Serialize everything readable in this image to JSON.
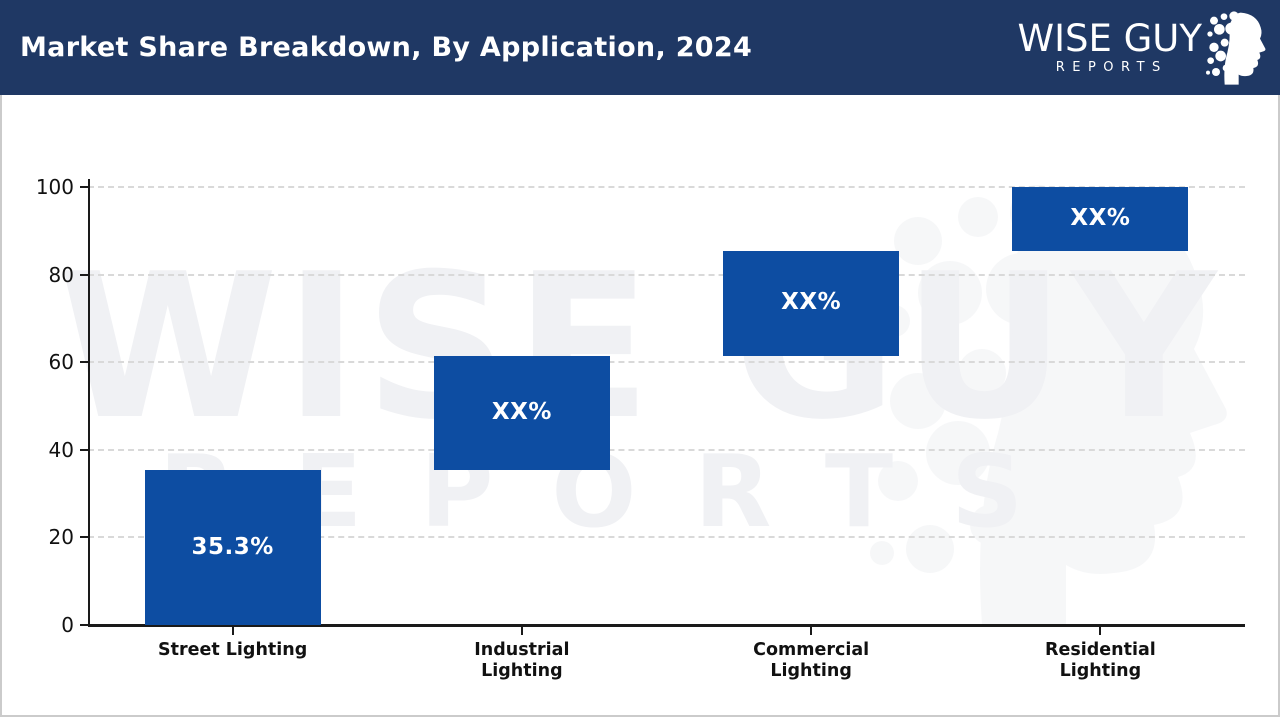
{
  "header": {
    "title": "Market Share Breakdown, By Application, 2024",
    "logo": {
      "wordmark": "WISE GUY",
      "subtext": "REPORTS"
    }
  },
  "watermark": {
    "line1": "WISE GUY",
    "line2": "REPORTS"
  },
  "colors": {
    "header_bg": "#1F3864",
    "bar_fill": "#0D4DA2",
    "bar_label_text": "#FFFFFF",
    "gridline": "#D9D9D9",
    "axis": "#1A1A1A",
    "watermark": "#F0F1F4",
    "canvas_border": "#CBCBCB"
  },
  "chart_data": {
    "type": "bar",
    "subtype": "floating-waterfall",
    "title": "Market Share Breakdown, By Application, 2024",
    "categories": [
      "Street Lighting",
      "Industrial\nLighting",
      "Commercial\nLighting",
      "Residential\nLighting"
    ],
    "segments": [
      {
        "category": "Street Lighting",
        "start": 0,
        "end": 35.3,
        "label": "35.3%"
      },
      {
        "category": "Industrial Lighting",
        "start": 35.3,
        "end": 61.5,
        "label": "XX%"
      },
      {
        "category": "Commercial Lighting",
        "start": 61.5,
        "end": 85.4,
        "label": "XX%"
      },
      {
        "category": "Residential Lighting",
        "start": 85.4,
        "end": 100,
        "label": "XX%"
      }
    ],
    "ylim": [
      0,
      100
    ],
    "yticks": [
      0,
      20,
      40,
      60,
      80,
      100
    ],
    "xlabel": "",
    "ylabel": "",
    "grid": "horizontal-dashed",
    "legend": "none"
  }
}
